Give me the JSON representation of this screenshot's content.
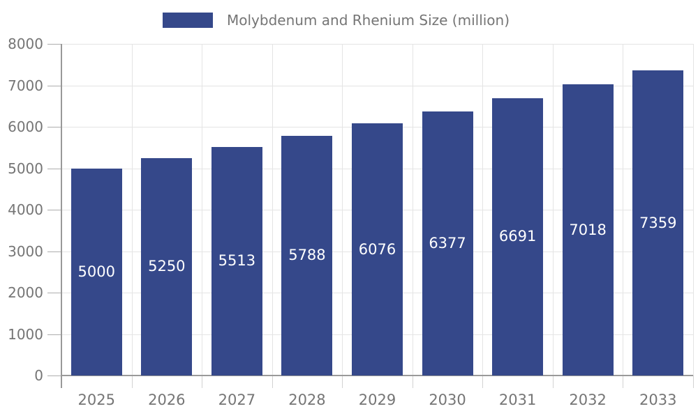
{
  "chart_data": {
    "type": "bar",
    "title": "",
    "legend": "Molybdenum and Rhenium Size (million)",
    "legend_position": "top",
    "categories": [
      "2025",
      "2026",
      "2027",
      "2028",
      "2029",
      "2030",
      "2031",
      "2032",
      "2033"
    ],
    "series": [
      {
        "name": "Molybdenum and Rhenium Size (million)",
        "values": [
          5000,
          5250,
          5513,
          5788,
          6076,
          6377,
          6691,
          7018,
          7359
        ]
      }
    ],
    "bar_labels": [
      "5000",
      "5250",
      "5513",
      "5788",
      "6076",
      "6377",
      "6691",
      "7018",
      "7359"
    ],
    "xlabel": "",
    "ylabel": "",
    "ylim": [
      0,
      8000
    ],
    "yticks": [
      0,
      1000,
      2000,
      3000,
      4000,
      5000,
      6000,
      7000,
      8000
    ],
    "grid": true
  },
  "style": {
    "background": "#ffffff",
    "bar_color": "#35488A",
    "bar_label_color": "#ffffff",
    "axis_label_color": "#757575",
    "legend_text_color": "#757575",
    "grid_color": "#E4E4E4",
    "axis_line_color": "#999999",
    "tick_color": "#ADADAD",
    "xtick_color": "#D2D2D2"
  }
}
